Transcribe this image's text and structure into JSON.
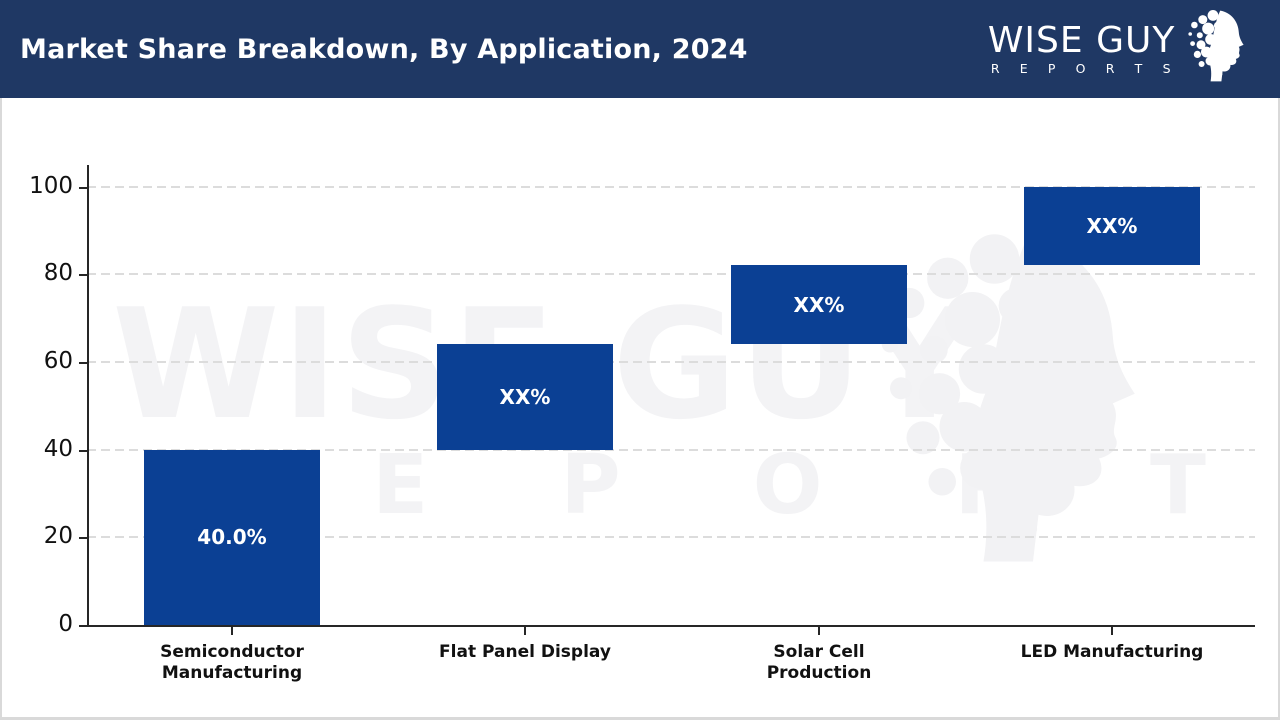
{
  "header": {
    "title": "Market Share Breakdown, By Application, 2024",
    "logo": {
      "line1": "WISE GUY",
      "line2": "REPORTS"
    }
  },
  "watermark": {
    "line1": "WISE GUY",
    "line2": "REPORTS"
  },
  "colors": {
    "header_bg": "#1f3864",
    "bar": "#0b4094",
    "grid": "#dcdcdc",
    "axis": "#262626",
    "bar_label": "#ffffff",
    "watermark": "#f3f3f5"
  },
  "chart_data": {
    "type": "bar",
    "subtype": "waterfall",
    "title": "Market Share Breakdown, By Application, 2024",
    "xlabel": "",
    "ylabel": "",
    "categories": [
      "Semiconductor\nManufacturing",
      "Flat Panel Display",
      "Solar Cell\nProduction",
      "LED Manufacturing"
    ],
    "segments": [
      {
        "category": "Semiconductor\nManufacturing",
        "start": 0,
        "end": 40,
        "label": "40.0%"
      },
      {
        "category": "Flat Panel Display",
        "start": 40,
        "end": 64,
        "label": "XX%"
      },
      {
        "category": "Solar Cell\nProduction",
        "start": 64,
        "end": 82,
        "label": "XX%"
      },
      {
        "category": "LED Manufacturing",
        "start": 82,
        "end": 100,
        "label": "XX%"
      }
    ],
    "yticks": [
      0,
      20,
      40,
      60,
      80,
      100
    ],
    "ylim": [
      0,
      105
    ],
    "grid": "horizontal-dashed",
    "legend": "none"
  }
}
